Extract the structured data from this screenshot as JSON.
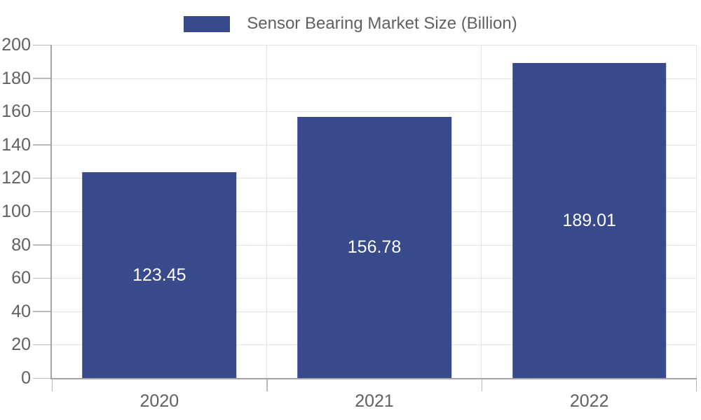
{
  "chart_data": {
    "type": "bar",
    "title": "",
    "legend_label": "Sensor Bearing Market Size (Billion)",
    "legend_position": "top",
    "categories": [
      "2020",
      "2021",
      "2022"
    ],
    "values": [
      123.45,
      156.78,
      189.01
    ],
    "xlabel": "",
    "ylabel": "",
    "ylim": [
      0,
      200
    ],
    "y_ticks": [
      0,
      20,
      40,
      60,
      80,
      100,
      120,
      140,
      160,
      180,
      200
    ],
    "grid": true,
    "colors": {
      "bar": "#38498C",
      "grid": "#E3E3E6",
      "axis_line": "#A3A3A8",
      "tick": "#B9B9BE",
      "text": "#616161",
      "bar_label": "#FFFFFF",
      "background": "#FFFFFF"
    }
  }
}
